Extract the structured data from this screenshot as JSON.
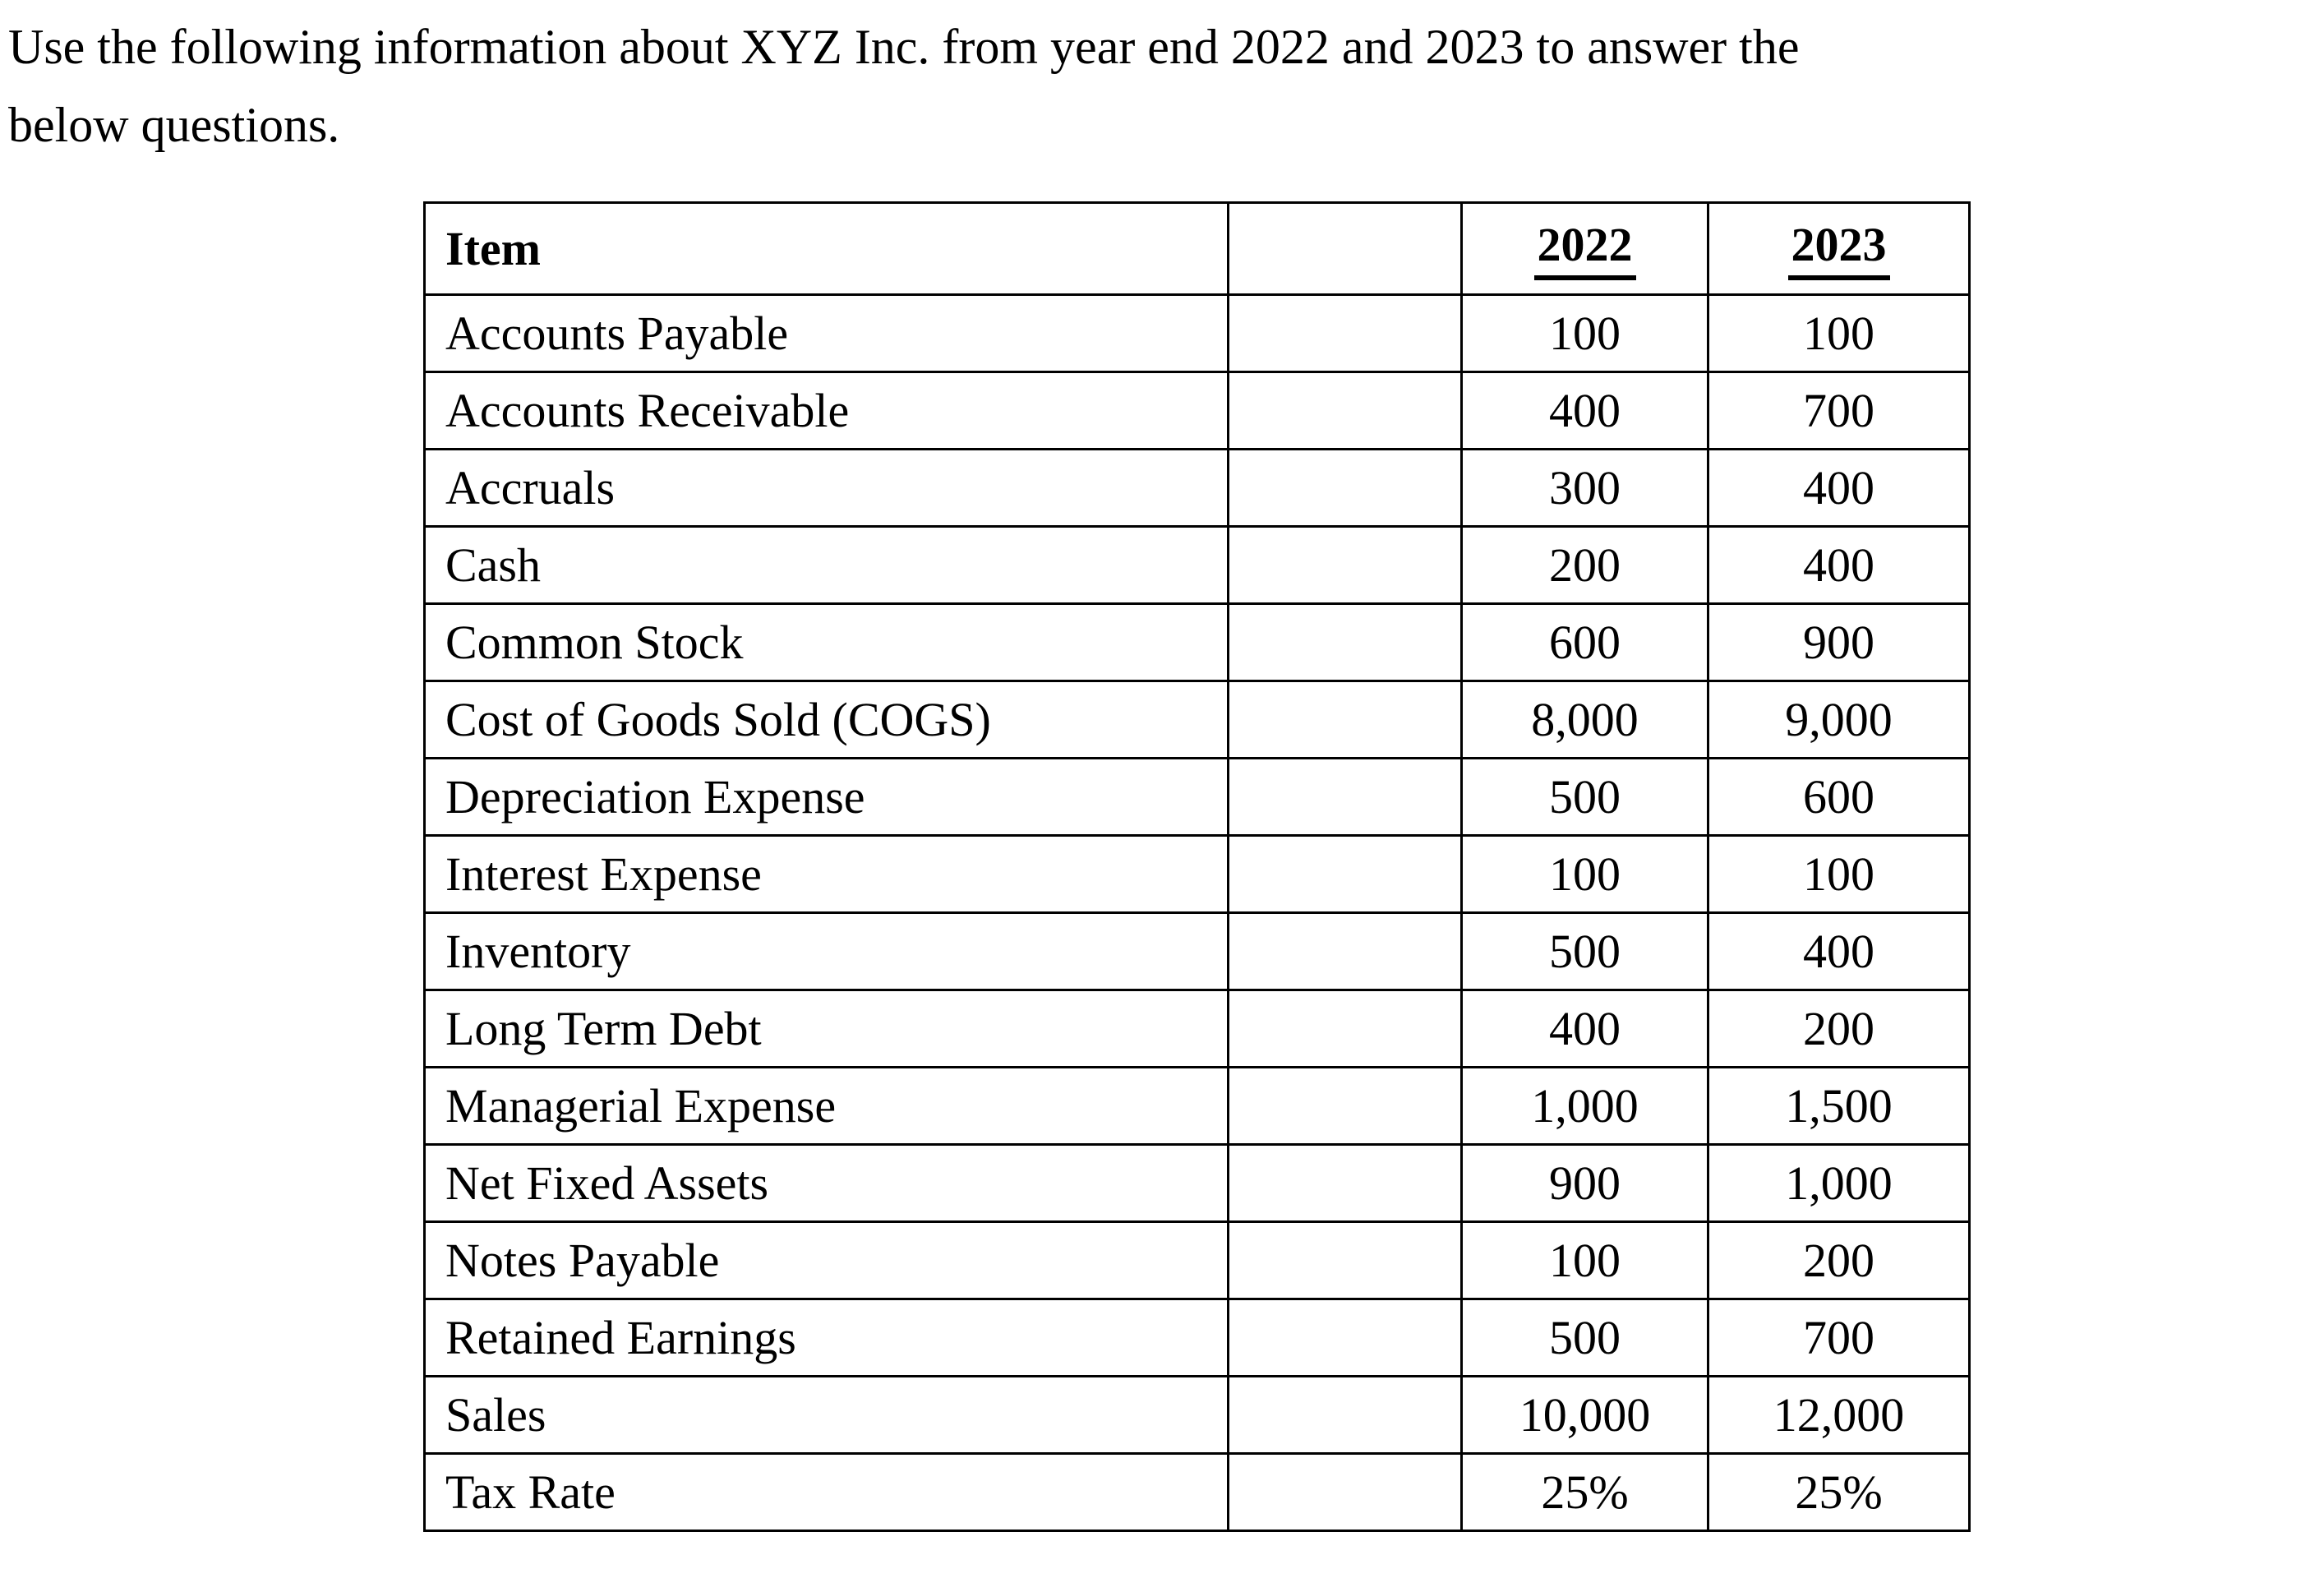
{
  "colors": {
    "text": "#000000",
    "background": "#ffffff",
    "table_border": "#000000"
  },
  "intro": {
    "full_text": "Use the following information about XYZ Inc. from year end 2022 and 2023 to answer the below questions.",
    "lines": [
      "Use the following information about XYZ Inc. from year end 2022 and 2023 to answer the",
      "below questions."
    ]
  },
  "table": {
    "headers": {
      "item": "Item",
      "blank": "",
      "year1": "2022",
      "year2": "2023"
    },
    "rows": [
      {
        "item": "Accounts Payable",
        "y2022": "100",
        "y2023": "100"
      },
      {
        "item": "Accounts Receivable",
        "y2022": "400",
        "y2023": "700"
      },
      {
        "item": "Accruals",
        "y2022": "300",
        "y2023": "400"
      },
      {
        "item": "Cash",
        "y2022": "200",
        "y2023": "400"
      },
      {
        "item": "Common Stock",
        "y2022": "600",
        "y2023": "900"
      },
      {
        "item": "Cost of Goods Sold (COGS)",
        "y2022": "8,000",
        "y2023": "9,000"
      },
      {
        "item": "Depreciation Expense",
        "y2022": "500",
        "y2023": "600"
      },
      {
        "item": "Interest Expense",
        "y2022": "100",
        "y2023": "100"
      },
      {
        "item": "Inventory",
        "y2022": "500",
        "y2023": "400"
      },
      {
        "item": "Long Term Debt",
        "y2022": "400",
        "y2023": "200"
      },
      {
        "item": "Managerial Expense",
        "y2022": "1,000",
        "y2023": "1,500"
      },
      {
        "item": "Net Fixed Assets",
        "y2022": "900",
        "y2023": "1,000"
      },
      {
        "item": "Notes Payable",
        "y2022": "100",
        "y2023": "200"
      },
      {
        "item": "Retained Earnings",
        "y2022": "500",
        "y2023": "700"
      },
      {
        "item": "Sales",
        "y2022": "10,000",
        "y2023": "12,000"
      },
      {
        "item": "Tax Rate",
        "y2022": "25%",
        "y2023": "25%"
      }
    ]
  }
}
